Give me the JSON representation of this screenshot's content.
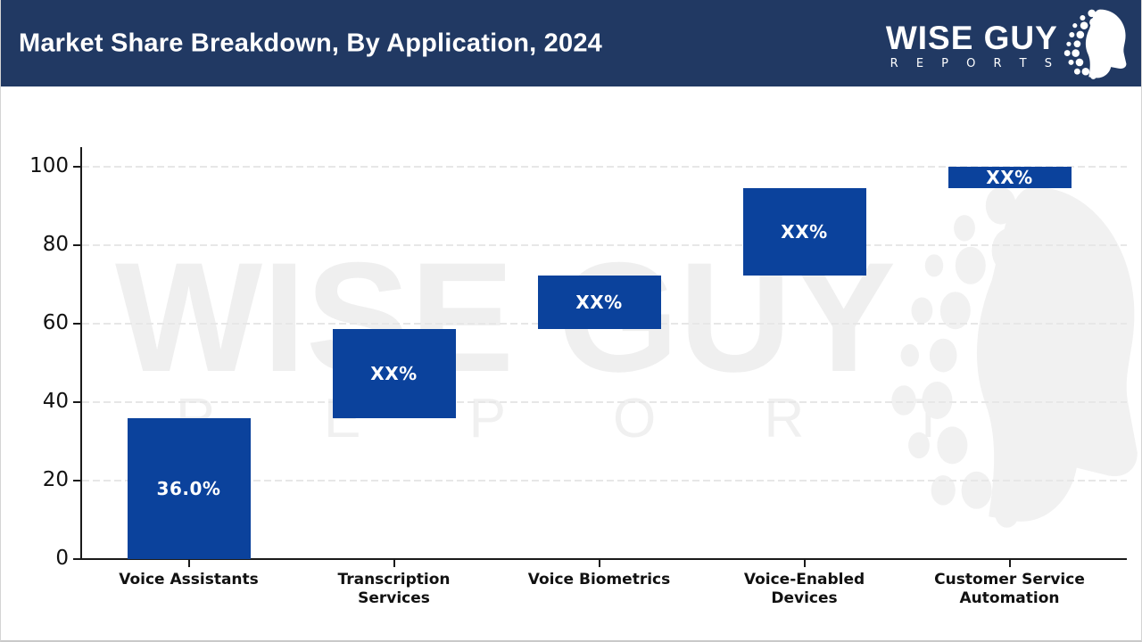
{
  "header": {
    "title": "Market Share Breakdown, By Application, 2024",
    "bg_color": "#213963",
    "logo": {
      "line1": "WISE GUY",
      "line2": "R E P O R T S"
    }
  },
  "watermark": {
    "line1": "WISE GUY",
    "line2": "R E P O R T S"
  },
  "chart_data": {
    "type": "bar",
    "subtype": "waterfall",
    "title": "Market Share Breakdown, By Application, 2024",
    "xlabel": "",
    "ylabel": "",
    "ylim": [
      0,
      104.5
    ],
    "yticks": [
      0,
      20,
      40,
      60,
      80,
      100
    ],
    "grid": "horizontal-dashed",
    "legend": "none",
    "bar_color": "#0B429C",
    "value_label_color": "#ffffff",
    "bars": [
      {
        "category": "Voice Assistants",
        "label": "36.0%",
        "start": 0,
        "end": 36.0,
        "value": 36.0
      },
      {
        "category": "Transcription\nServices",
        "label": "XX%",
        "start": 36.0,
        "end": 58.6,
        "value": 22.6
      },
      {
        "category": "Voice Biometrics",
        "label": "XX%",
        "start": 58.6,
        "end": 72.3,
        "value": 13.7
      },
      {
        "category": "Voice-Enabled\nDevices",
        "label": "XX%",
        "start": 72.3,
        "end": 94.5,
        "value": 22.2
      },
      {
        "category": "Customer Service\nAutomation",
        "label": "XX%",
        "start": 94.5,
        "end": 100.0,
        "value": 5.5
      }
    ]
  }
}
